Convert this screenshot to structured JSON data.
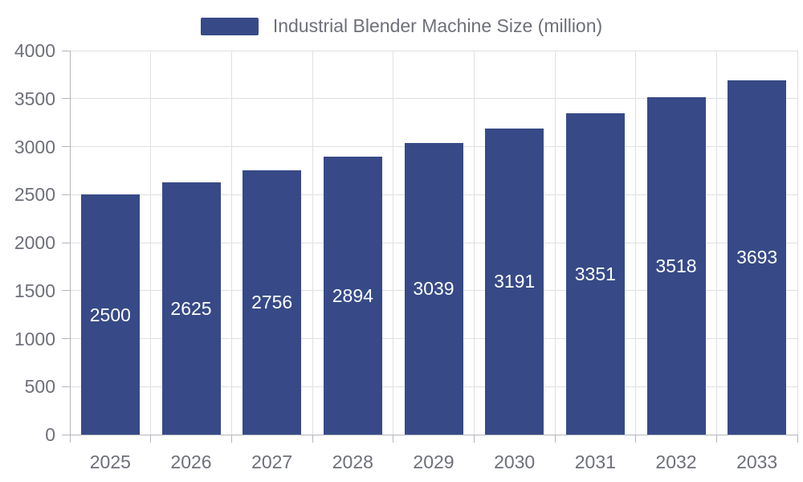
{
  "legend": {
    "label": "Industrial Blender Machine Size (million)"
  },
  "chart_data": {
    "type": "bar",
    "title": "Industrial Blender Machine Size (million)",
    "series_name": "Industrial Blender Machine Size (million)",
    "categories": [
      "2025",
      "2026",
      "2027",
      "2028",
      "2029",
      "2030",
      "2031",
      "2032",
      "2033"
    ],
    "values": [
      2500,
      2625,
      2756,
      2894,
      3039,
      3191,
      3351,
      3518,
      3693
    ],
    "xlabel": "",
    "ylabel": "",
    "ylim": [
      0,
      4000
    ],
    "yticks": [
      0,
      500,
      1000,
      1500,
      2000,
      2500,
      3000,
      3500,
      4000
    ],
    "grid": true,
    "legend_position": "top-center",
    "bar_labels_inside": true,
    "colors": {
      "bar": "#374A87",
      "bar_label": "#FFFFFF",
      "axis_label": "#6E7079",
      "legend_text": "#6E7079",
      "grid_line": "#E0E0E0",
      "axis_line": "#B3B6BC",
      "background": "#FFFFFF"
    }
  }
}
